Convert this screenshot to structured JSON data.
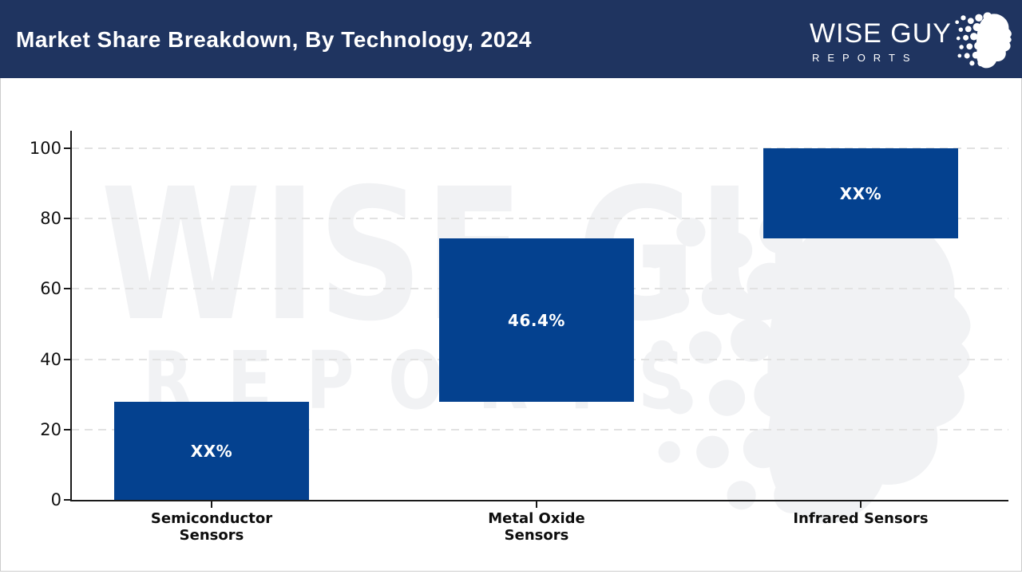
{
  "header": {
    "title": "Market Share Breakdown, By Technology, 2024",
    "logo": {
      "line1": "WISE GUY",
      "line2": "REPORTS"
    }
  },
  "watermark": {
    "line1": "WISE GUY",
    "line2": "REPORTS"
  },
  "colors": {
    "header_bg": "#1f3460",
    "bar": "#04418f",
    "grid": "#e2e2e2",
    "axis": "#1a1a1a",
    "value_label": "#ffffff",
    "watermark": "#f1f2f4"
  },
  "chart_data": {
    "type": "bar",
    "subtype": "waterfall-stacked-breakdown",
    "title": "Market Share Breakdown, By Technology, 2024",
    "categories": [
      "Semiconductor\nSensors",
      "Metal Oxide\nSensors",
      "Infrared Sensors"
    ],
    "series": [
      {
        "name": "Market Share %",
        "bases": [
          0,
          27.9,
          74.3
        ],
        "values": [
          27.9,
          46.4,
          25.7
        ]
      }
    ],
    "bar_labels": [
      "XX%",
      "46.4%",
      "XX%"
    ],
    "xlabel": "",
    "ylabel": "",
    "ylim": [
      0,
      100
    ],
    "yticks": [
      0,
      20,
      40,
      60,
      80,
      100
    ],
    "grid": "horizontal-dashed",
    "legend": "none"
  }
}
